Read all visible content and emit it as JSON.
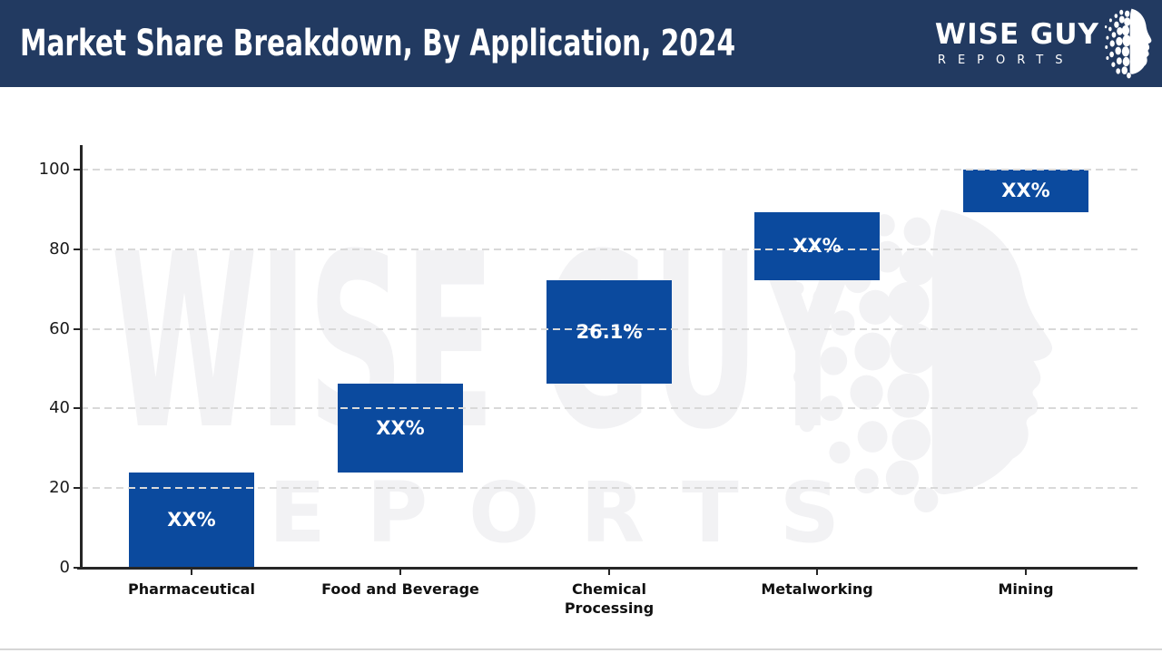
{
  "header": {
    "title": "Market Share Breakdown, By Application, 2024"
  },
  "logo": {
    "line1": "WISE GUY",
    "line2": "REPORTS"
  },
  "watermark": {
    "line1": "WISE GUY",
    "line2": "REPORTS"
  },
  "chart_data": {
    "type": "bar",
    "variant": "waterfall",
    "title": "Market Share Breakdown, By Application, 2024",
    "xlabel": "",
    "ylabel": "",
    "categories": [
      "Pharmaceutical",
      "Food and Beverage",
      "Chemical Processing",
      "Metalworking",
      "Mining"
    ],
    "tick_label_lines": [
      [
        "Pharmaceutical"
      ],
      [
        "Food and Beverage"
      ],
      [
        "Chemical",
        "Processing"
      ],
      [
        "Metalworking"
      ],
      [
        "Mining"
      ]
    ],
    "segments": [
      {
        "category": "Pharmaceutical",
        "start": 0,
        "end": 24,
        "value_label": "XX%"
      },
      {
        "category": "Food and Beverage",
        "start": 24,
        "end": 46.2,
        "value_label": "XX%"
      },
      {
        "category": "Chemical Processing",
        "start": 46.2,
        "end": 72.3,
        "value_label": "26.1%"
      },
      {
        "category": "Metalworking",
        "start": 72.3,
        "end": 89.3,
        "value_label": "XX%"
      },
      {
        "category": "Mining",
        "start": 89.3,
        "end": 100,
        "value_label": "XX%"
      }
    ],
    "ylim": [
      0,
      100
    ],
    "yticks": [
      0,
      20,
      40,
      60,
      80,
      100
    ],
    "grid": true,
    "grid_style": "dashed-horizontal",
    "legend": false,
    "bar_color": "#0B4A9E",
    "bar_label_color": "#FFFFFF"
  },
  "colors": {
    "header_bg": "#223A61",
    "header_text": "#FFFFFF",
    "axis": "#262626",
    "grid": "#D9D9D9",
    "watermark": "#F2F2F4",
    "background": "#FFFFFF"
  }
}
